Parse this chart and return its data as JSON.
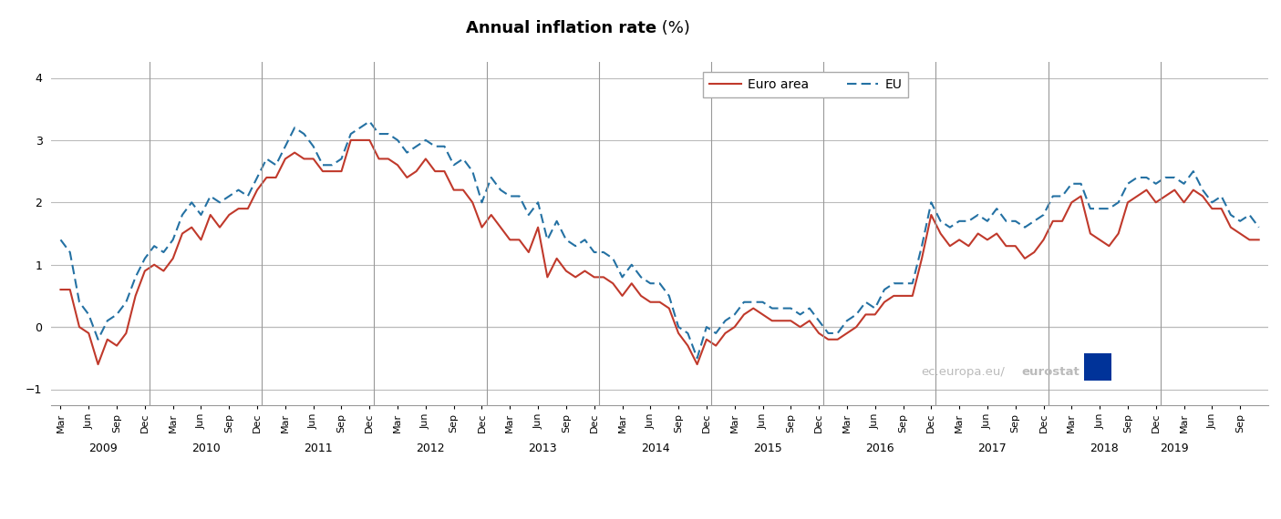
{
  "title_bold": "Annual inflation rate",
  "title_normal": " (%)",
  "ylim": [
    -1.25,
    4.25
  ],
  "yticks": [
    -1,
    0,
    1,
    2,
    3,
    4
  ],
  "euro_area_color": "#c0392b",
  "eu_color": "#2471a3",
  "background_color": "#ffffff",
  "legend_euro_label": "Euro area",
  "legend_eu_label": "EU",
  "euro_area": [
    0.6,
    0.6,
    0.0,
    -0.1,
    -0.6,
    -0.2,
    -0.3,
    -0.1,
    0.5,
    0.9,
    1.0,
    0.9,
    1.1,
    1.5,
    1.6,
    1.4,
    1.8,
    1.6,
    1.8,
    1.9,
    1.9,
    2.2,
    2.4,
    2.4,
    2.7,
    2.8,
    2.7,
    2.7,
    2.5,
    2.5,
    2.5,
    3.0,
    3.0,
    3.0,
    2.7,
    2.7,
    2.6,
    2.4,
    2.5,
    2.7,
    2.5,
    2.5,
    2.2,
    2.2,
    2.0,
    1.6,
    1.8,
    1.6,
    1.4,
    1.4,
    1.2,
    1.6,
    0.8,
    1.1,
    0.9,
    0.8,
    0.9,
    0.8,
    0.8,
    0.7,
    0.5,
    0.7,
    0.5,
    0.4,
    0.4,
    0.3,
    -0.1,
    -0.3,
    -0.6,
    -0.2,
    -0.3,
    -0.1,
    0.0,
    0.2,
    0.3,
    0.2,
    0.1,
    0.1,
    0.1,
    0.0,
    0.1,
    -0.1,
    -0.2,
    -0.2,
    -0.1,
    0.0,
    0.2,
    0.2,
    0.4,
    0.5,
    0.5,
    0.5,
    1.1,
    1.8,
    1.5,
    1.3,
    1.4,
    1.3,
    1.5,
    1.4,
    1.5,
    1.3,
    1.3,
    1.1,
    1.2,
    1.4,
    1.7,
    1.7,
    2.0,
    2.1,
    1.5,
    1.4,
    1.3,
    1.5,
    2.0,
    2.1,
    2.2,
    2.0,
    2.1,
    2.2,
    2.0,
    2.2,
    2.1,
    1.9,
    1.9,
    1.6,
    1.5,
    1.4,
    1.4
  ],
  "eu": [
    1.4,
    1.2,
    0.4,
    0.2,
    -0.2,
    0.1,
    0.2,
    0.4,
    0.8,
    1.1,
    1.3,
    1.2,
    1.4,
    1.8,
    2.0,
    1.8,
    2.1,
    2.0,
    2.1,
    2.2,
    2.1,
    2.4,
    2.7,
    2.6,
    2.9,
    3.2,
    3.1,
    2.9,
    2.6,
    2.6,
    2.7,
    3.1,
    3.2,
    3.3,
    3.1,
    3.1,
    3.0,
    2.8,
    2.9,
    3.0,
    2.9,
    2.9,
    2.6,
    2.7,
    2.5,
    2.0,
    2.4,
    2.2,
    2.1,
    2.1,
    1.8,
    2.0,
    1.4,
    1.7,
    1.4,
    1.3,
    1.4,
    1.2,
    1.2,
    1.1,
    0.8,
    1.0,
    0.8,
    0.7,
    0.7,
    0.5,
    0.0,
    -0.1,
    -0.5,
    0.0,
    -0.1,
    0.1,
    0.2,
    0.4,
    0.4,
    0.4,
    0.3,
    0.3,
    0.3,
    0.2,
    0.3,
    0.1,
    -0.1,
    -0.1,
    0.1,
    0.2,
    0.4,
    0.3,
    0.6,
    0.7,
    0.7,
    0.7,
    1.3,
    2.0,
    1.7,
    1.6,
    1.7,
    1.7,
    1.8,
    1.7,
    1.9,
    1.7,
    1.7,
    1.6,
    1.7,
    1.8,
    2.1,
    2.1,
    2.3,
    2.3,
    1.9,
    1.9,
    1.9,
    2.0,
    2.3,
    2.4,
    2.4,
    2.3,
    2.4,
    2.4,
    2.3,
    2.5,
    2.2,
    2.0,
    2.1,
    1.8,
    1.7,
    1.8,
    1.6
  ],
  "years": [
    "2009",
    "2010",
    "2011",
    "2012",
    "2013",
    "2014",
    "2015",
    "2016",
    "2017",
    "2018",
    "2019"
  ],
  "year_boundaries_idx": [
    0,
    10,
    22,
    34,
    46,
    58,
    70,
    82,
    94,
    106,
    118,
    121
  ]
}
